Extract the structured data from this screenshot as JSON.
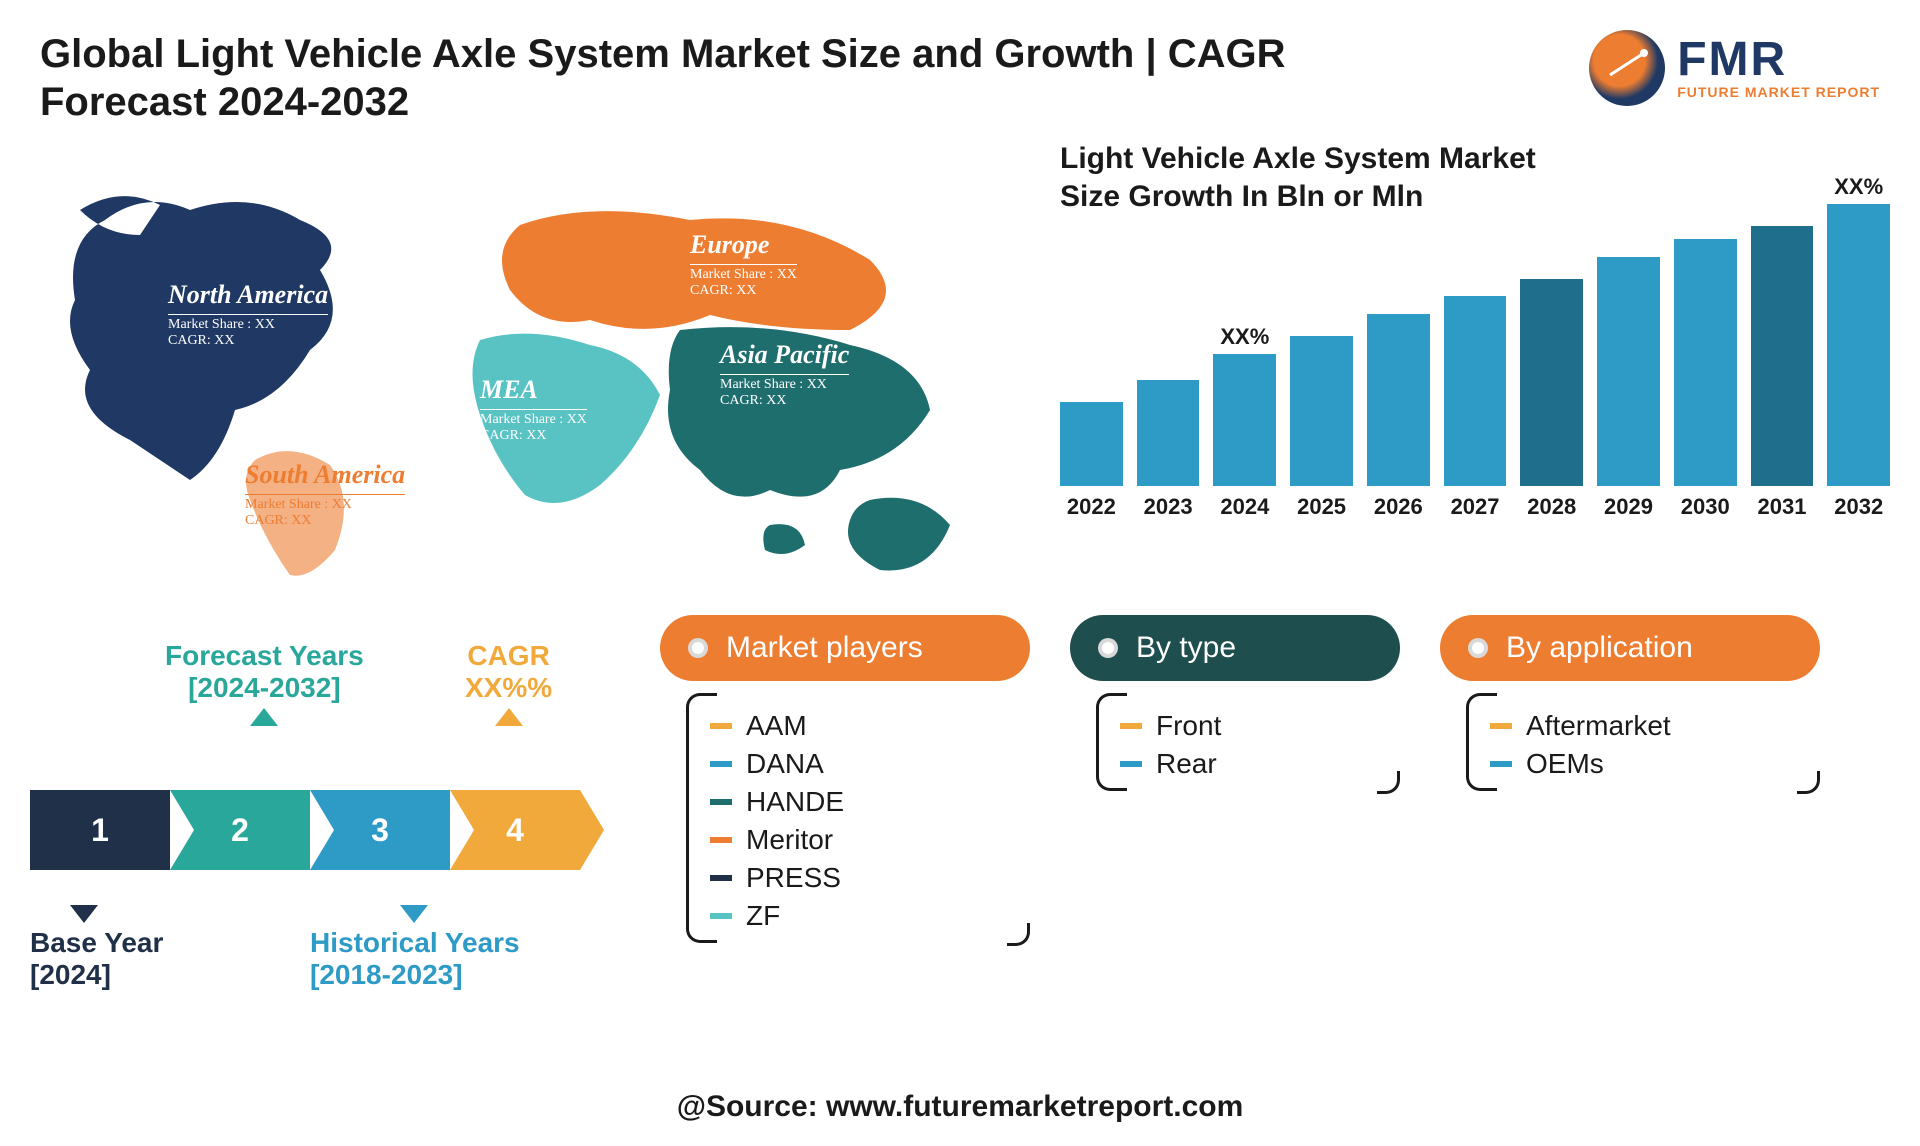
{
  "title": "Global Light Vehicle Axle System Market Size and Growth | CAGR Forecast 2024-2032",
  "logo": {
    "abbr": "FMR",
    "subtitle": "FUTURE MARKET REPORT"
  },
  "regions": {
    "north_america": {
      "name": "North America",
      "share": "Market Share : XX",
      "cagr": "CAGR: XX",
      "color": "#1f3964"
    },
    "south_america": {
      "name": "South America",
      "share": "Market Share : XX",
      "cagr": "CAGR: XX",
      "color": "#f4b183"
    },
    "europe": {
      "name": "Europe",
      "share": "Market Share : XX",
      "cagr": "CAGR: XX",
      "color": "#ed7d31"
    },
    "mea": {
      "name": "MEA",
      "share": "Market Share : XX",
      "cagr": "CAGR: XX",
      "color": "#59c3c3"
    },
    "asia_pacific": {
      "name": "Asia Pacific",
      "share": "Market Share : XX",
      "cagr": "CAGR: XX",
      "color": "#1f6e6e"
    }
  },
  "chart": {
    "title": "Light Vehicle Axle System Market Size Growth In Bln or Mln",
    "type": "bar",
    "categories": [
      "2022",
      "2023",
      "2024",
      "2025",
      "2026",
      "2027",
      "2028",
      "2029",
      "2030",
      "2031",
      "2032"
    ],
    "values": [
      95,
      120,
      150,
      170,
      195,
      215,
      235,
      260,
      280,
      295,
      320
    ],
    "bar_color_main": "#2e9bc6",
    "bar_color_alt": "#1f6e8c",
    "alt_indices": [
      6,
      9
    ],
    "annotations": [
      {
        "index": 2,
        "text": "XX%"
      },
      {
        "index": 10,
        "text": "XX%"
      }
    ],
    "max_value": 340,
    "label_fontsize": 22,
    "label_weight": 700,
    "background_color": "#ffffff"
  },
  "timeline": {
    "steps": [
      {
        "num": "1",
        "bg": "#1f3048"
      },
      {
        "num": "2",
        "bg": "#2aa79b"
      },
      {
        "num": "3",
        "bg": "#2e9bc6"
      },
      {
        "num": "4",
        "bg": "#f2a93b"
      }
    ],
    "labels": {
      "base": {
        "title": "Base Year",
        "value": "[2024]",
        "color": "#1f3048"
      },
      "forecast": {
        "title": "Forecast Years",
        "value": "[2024-2032]",
        "color": "#2aa79b"
      },
      "historical": {
        "title": "Historical Years",
        "value": "[2018-2023]",
        "color": "#2e9bc6"
      },
      "cagr": {
        "title": "CAGR",
        "value": "XX%%",
        "color": "#f2a93b"
      }
    }
  },
  "pills": {
    "players": {
      "label": "Market players",
      "bg": "#ed7d31",
      "items": [
        "AAM",
        "DANA",
        "HANDE",
        "Meritor",
        "PRESS",
        "ZF"
      ]
    },
    "type": {
      "label": "By type",
      "bg": "#1f4e4e",
      "items": [
        "Front",
        "Rear"
      ]
    },
    "application": {
      "label": "By application",
      "bg": "#ed7d31",
      "items": [
        "Aftermarket",
        "OEMs"
      ]
    },
    "tick_colors": [
      "#f2a93b",
      "#2e9bc6",
      "#1f6e6e",
      "#ed7d31",
      "#1f3048",
      "#59c3c3"
    ]
  },
  "source": "@Source: www.futuremarketreport.com"
}
